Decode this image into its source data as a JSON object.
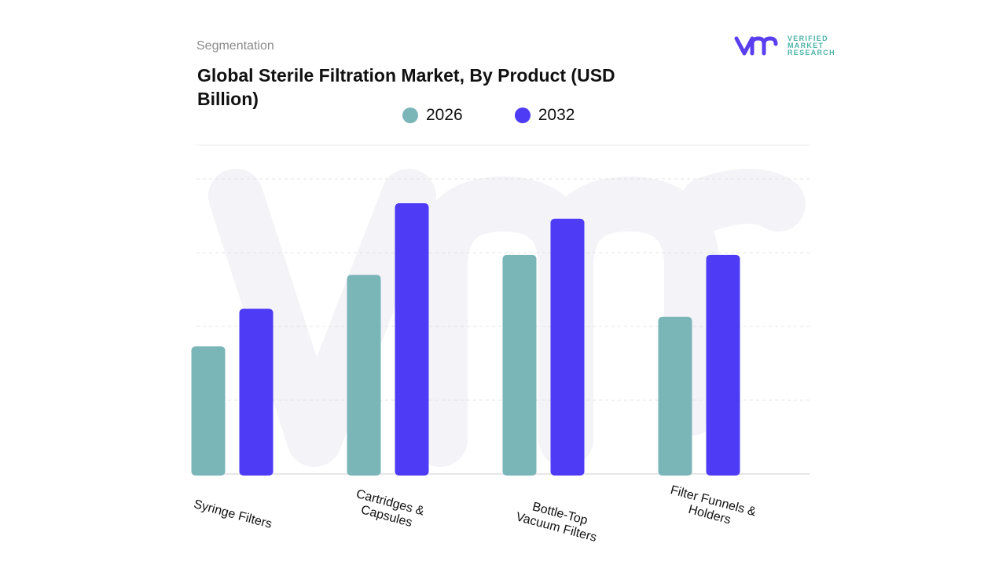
{
  "header": {
    "segment_label": "Segmentation",
    "title": "Global Sterile Filtration Market, By Product (USD Billion)"
  },
  "logo": {
    "name": "VERIFIED MARKET RESEARCH",
    "lines": [
      "VERIFIED",
      "MARKET",
      "RESEARCH"
    ]
  },
  "chart_data": {
    "type": "bar",
    "title": "Global Sterile Filtration Market, By Product (USD Billion)",
    "xlabel": "",
    "ylabel": "",
    "categories": [
      "Syringe Filters",
      "Cartridges & Capsules",
      "Bottle-Top Vacuum Filters",
      "Filter Funnels & Holders"
    ],
    "category_lines": [
      [
        "Syringe Filters"
      ],
      [
        "Cartridges &",
        "Capsules"
      ],
      [
        "Bottle-Top",
        "Vacuum Filters"
      ],
      [
        "Filter Funnels &",
        "Holders"
      ]
    ],
    "series": [
      {
        "name": "2026",
        "color": "#7ab5b7",
        "values": [
          1.73,
          2.7,
          2.97,
          2.13
        ]
      },
      {
        "name": "2032",
        "color": "#4d3bf5",
        "values": [
          2.24,
          3.67,
          3.46,
          2.97
        ]
      }
    ],
    "ylim": [
      0,
      4
    ],
    "grid": true,
    "legend_position": "top-center"
  }
}
